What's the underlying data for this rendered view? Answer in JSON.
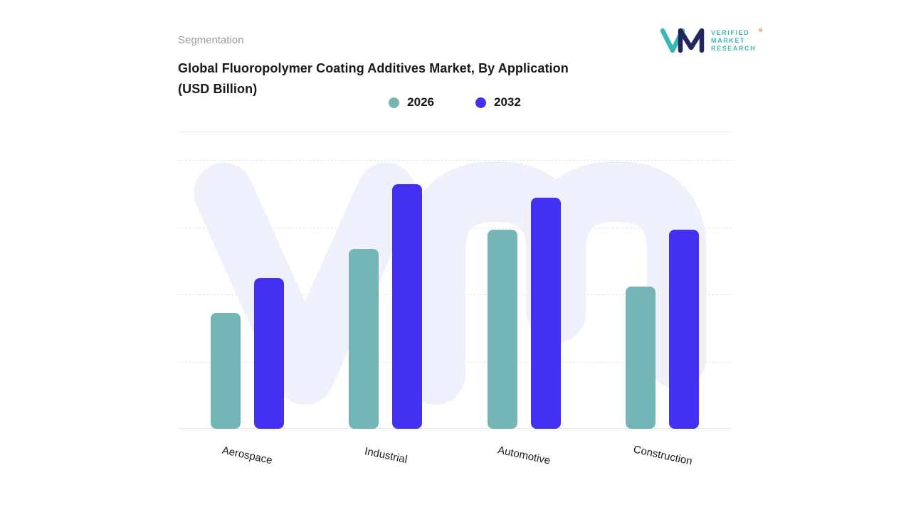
{
  "header": {
    "eyebrow": "Segmentation",
    "title_line1": "Global Fluoropolymer Coating Additives Market, By Application",
    "title_line2": "(USD Billion)"
  },
  "logo": {
    "monogram": "VM",
    "lines": [
      "VERIFIED",
      "MARKET",
      "RESEARCH"
    ],
    "registered": "®",
    "teal": "#3ab7b4",
    "navy": "#23265e"
  },
  "legend": [
    {
      "label": "2026",
      "color": "#74b6b6"
    },
    {
      "label": "2032",
      "color": "#4430f0"
    }
  ],
  "colors": {
    "accent_teal": "#74b6b6",
    "accent_purple": "#4430f0",
    "watermark": "#eef0fb",
    "gridline": "#e4e4e8",
    "title_text": "#191919",
    "muted_text": "#9b9b9b"
  },
  "chart_data": {
    "type": "bar",
    "title": "Global Fluoropolymer Coating Additives Market, By Application (USD Billion)",
    "categories": [
      "Aerospace",
      "Industrial",
      "Automotive",
      "Construction"
    ],
    "series": [
      {
        "name": "2026",
        "color": "#74b6b6",
        "values": [
          4.3,
          6.7,
          7.4,
          5.3
        ]
      },
      {
        "name": "2032",
        "color": "#4430f0",
        "values": [
          5.6,
          9.1,
          8.6,
          7.4
        ]
      }
    ],
    "xlabel": "",
    "ylabel": "",
    "ylim": [
      0,
      10
    ],
    "y_axis_labels_visible": false,
    "grid": "horizontal-dashed",
    "legend_position": "top-center"
  }
}
